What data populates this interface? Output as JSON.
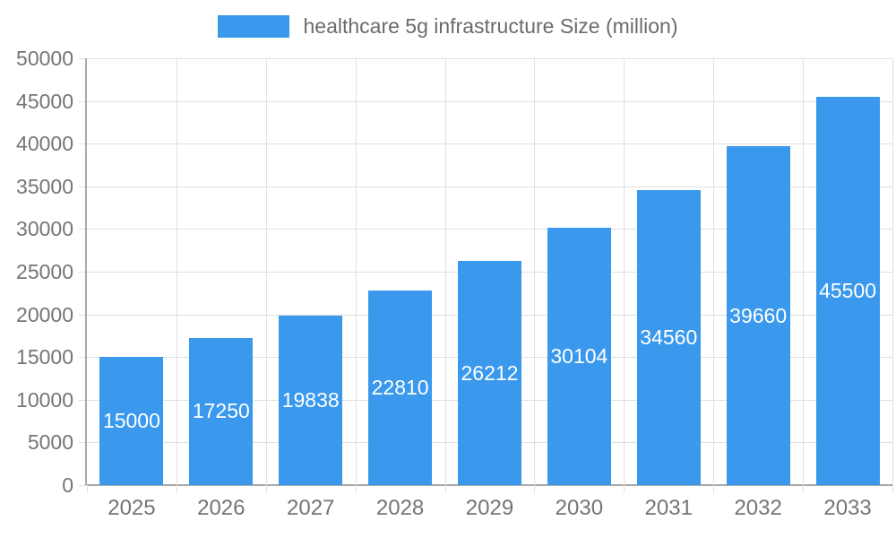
{
  "legend": {
    "label": "healthcare 5g infrastructure Size (million)"
  },
  "chart_data": {
    "type": "bar",
    "title": "healthcare 5g infrastructure Size (million)",
    "xlabel": "",
    "ylabel": "",
    "categories": [
      "2025",
      "2026",
      "2027",
      "2028",
      "2029",
      "2030",
      "2031",
      "2032",
      "2033"
    ],
    "values": [
      15000,
      17250,
      19838,
      22810,
      26212,
      30104,
      34560,
      39660,
      45500
    ],
    "value_labels_shown": true,
    "ylim": [
      0,
      50000
    ],
    "yticks": [
      0,
      5000,
      10000,
      15000,
      20000,
      25000,
      30000,
      35000,
      40000,
      45000,
      50000
    ],
    "grid": true,
    "legend_position": "top",
    "colors": {
      "bar": "#3a99ec",
      "value_label": "#ffffff",
      "axis_text": "#757575",
      "grid_line": "#e0e0e0",
      "axis_line": "#a8a8a8",
      "background": "#ffffff"
    }
  }
}
